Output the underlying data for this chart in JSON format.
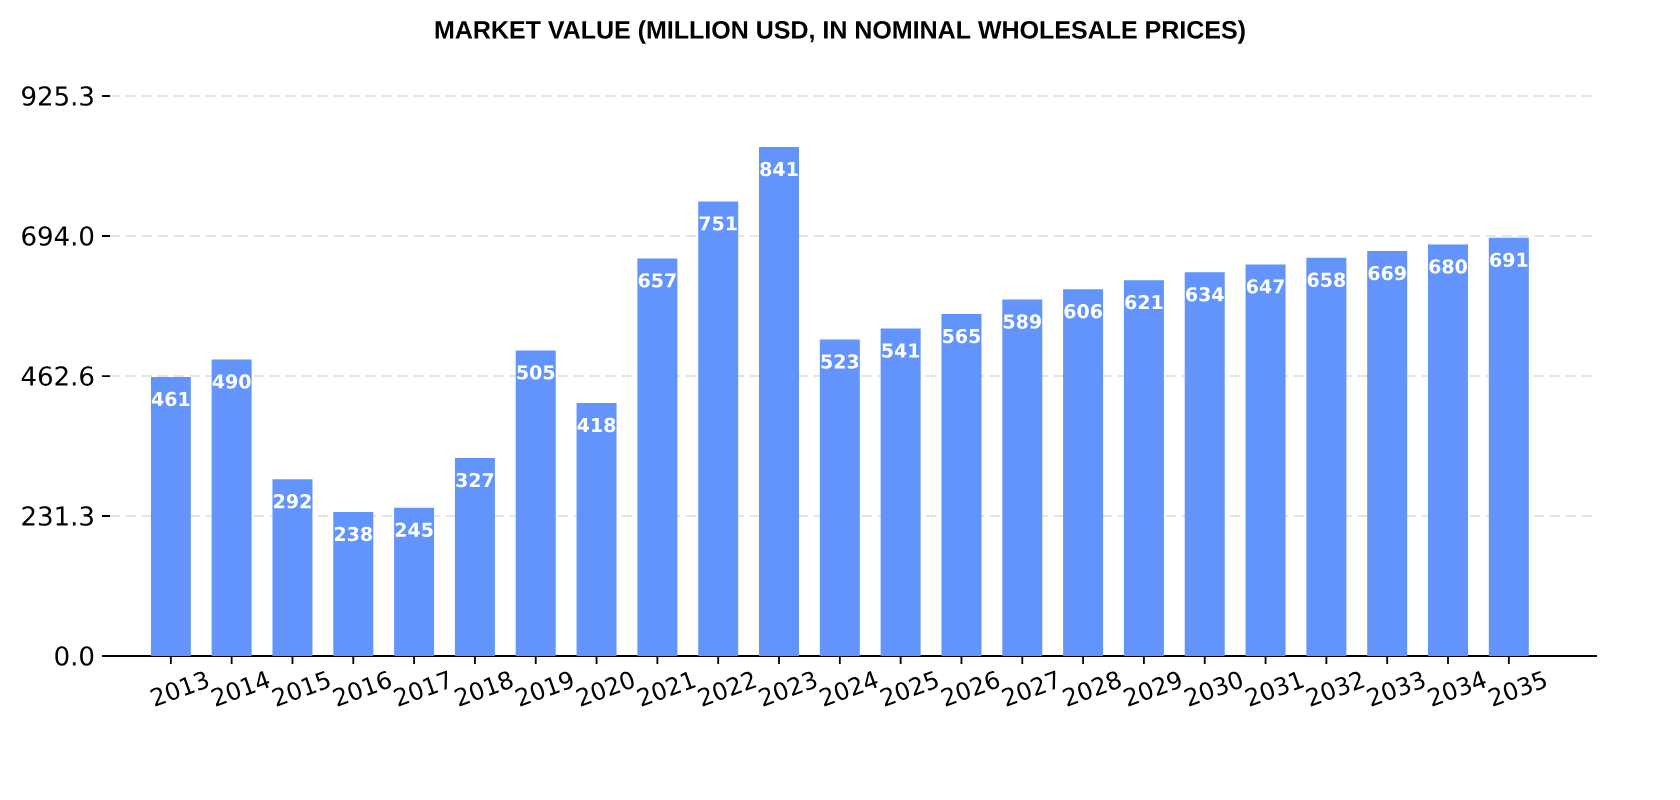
{
  "chart_data": {
    "type": "bar",
    "title": "MARKET VALUE (MILLION USD, IN NOMINAL WHOLESALE PRICES)",
    "categories": [
      "2013",
      "2014",
      "2015",
      "2016",
      "2017",
      "2018",
      "2019",
      "2020",
      "2021",
      "2022",
      "2023",
      "2024",
      "2025",
      "2026",
      "2027",
      "2028",
      "2029",
      "2030",
      "2031",
      "2032",
      "2033",
      "2034",
      "2035"
    ],
    "values": [
      461,
      490,
      292,
      238,
      245,
      327,
      505,
      418,
      657,
      751,
      841,
      523,
      541,
      565,
      589,
      606,
      621,
      634,
      647,
      658,
      669,
      680,
      691
    ],
    "color": "#6394fb",
    "ylim": [
      0,
      925.3
    ],
    "yticks": [
      {
        "value": 0,
        "label": "0.0"
      },
      231.3,
      462.6,
      {
        "value": 694,
        "label": "694.0"
      },
      925.3
    ],
    "grid": "y",
    "data_labels": true
  }
}
